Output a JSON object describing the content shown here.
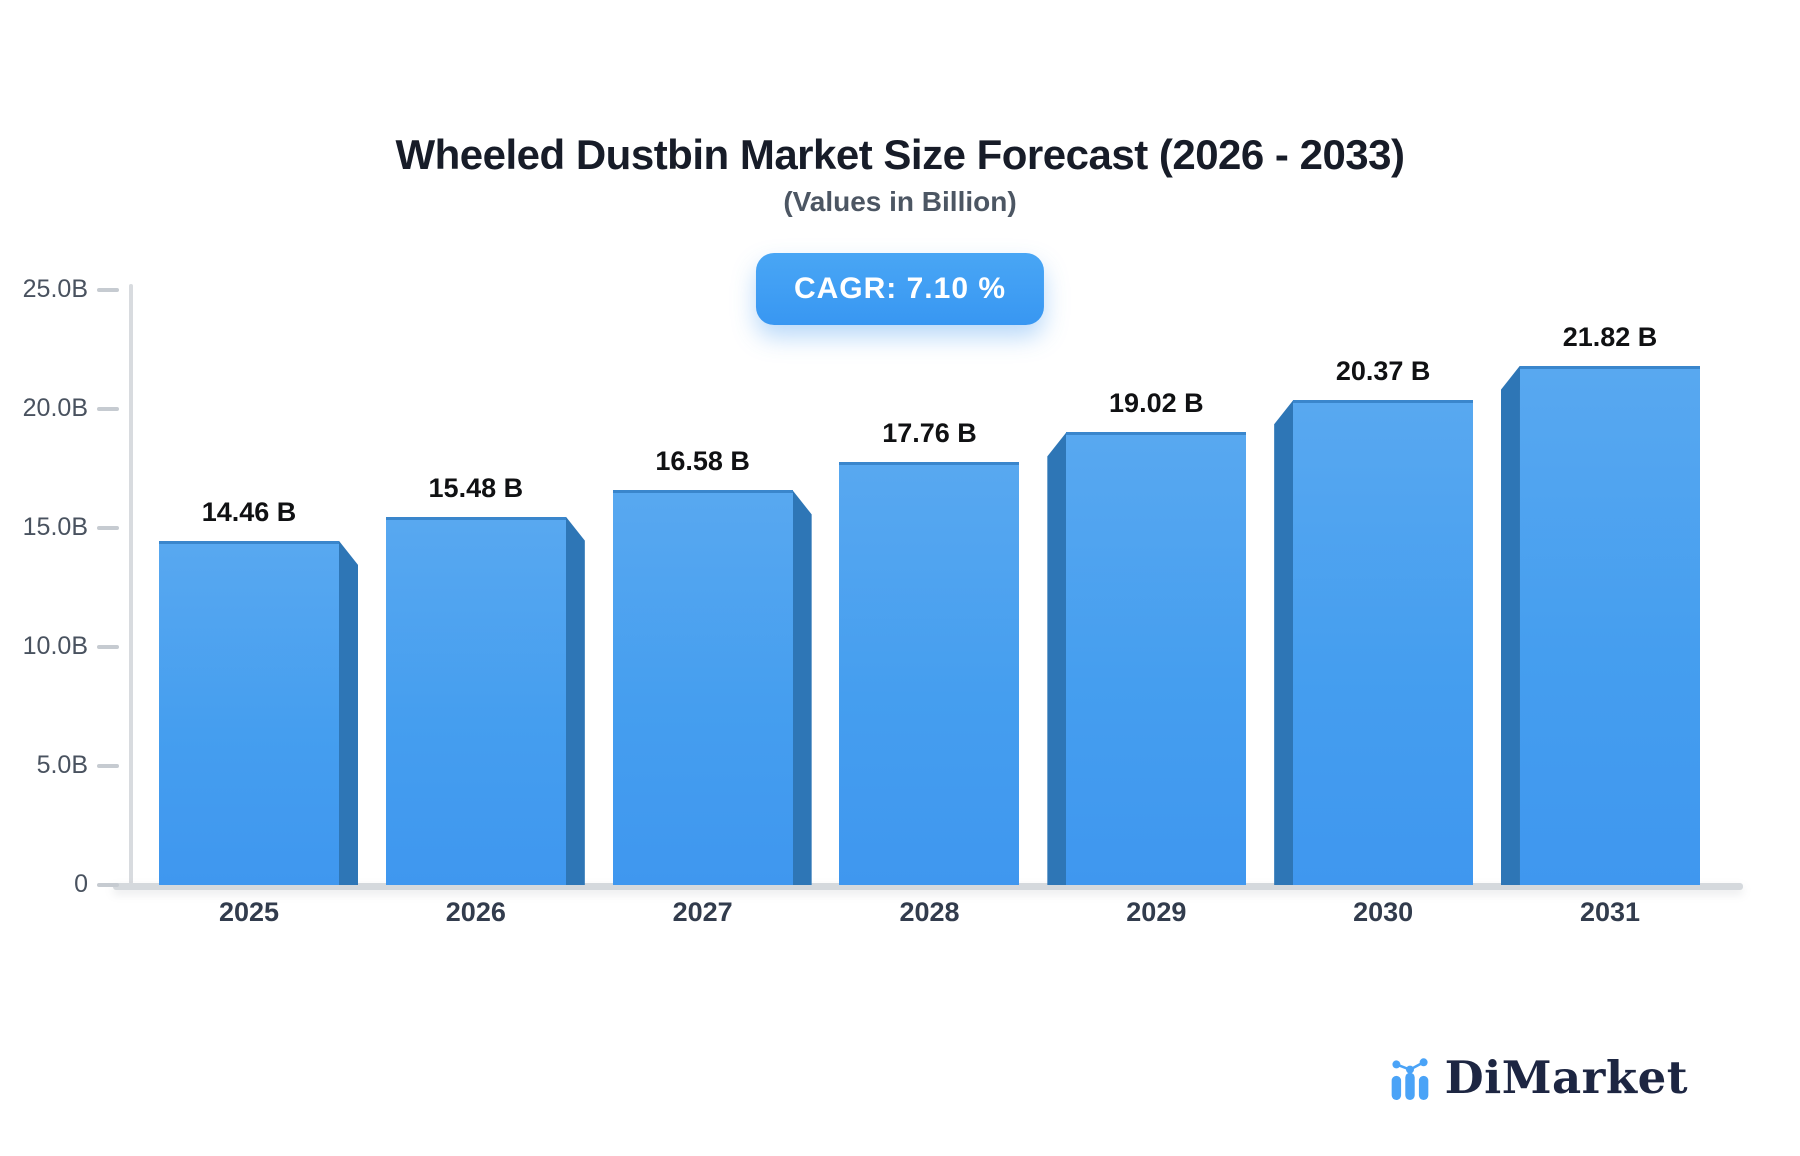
{
  "header": {
    "title": "Wheeled Dustbin Market Size Forecast (2026 - 2033)",
    "subtitle": "(Values in Billion)",
    "cagr_badge": "CAGR: 7.10 %"
  },
  "chart_data": {
    "type": "bar",
    "title": "Wheeled Dustbin Market Size Forecast (2026 - 2033)",
    "subtitle": "(Values in Billion)",
    "cagr": "7.10 %",
    "categories": [
      "2025",
      "2026",
      "2027",
      "2028",
      "2029",
      "2030",
      "2031"
    ],
    "values": [
      14.46,
      15.48,
      16.58,
      17.76,
      19.02,
      20.37,
      21.82
    ],
    "bar_labels": [
      "14.46 B",
      "15.48 B",
      "16.58 B",
      "17.76 B",
      "19.02 B",
      "20.37 B",
      "21.82 B"
    ],
    "xlabel": "",
    "ylabel": "",
    "ylim": [
      0,
      25
    ],
    "yticks": [
      {
        "label": "25.0B",
        "value": 25
      },
      {
        "label": "20.0B",
        "value": 20
      },
      {
        "label": "15.0B",
        "value": 15
      },
      {
        "label": "10.0B",
        "value": 10
      },
      {
        "label": "5.0B",
        "value": 5
      },
      {
        "label": "0",
        "value": 0
      }
    ],
    "grid": false,
    "legend": false,
    "style": "3d-perspective-bars"
  },
  "colors": {
    "bar_face_top": "#58a8f0",
    "bar_face_bottom": "#3f97ef",
    "bar_side_face": "#2e76b6",
    "bar_top_edge": "#3a86cc",
    "badge_background": "#3d9ef3",
    "badge_text": "#ffffff",
    "axis_line": "#d6dadd",
    "tick_dash": "#c6cbd1",
    "title_text": "#171c28",
    "subtitle_text": "#4c5663",
    "y_label_text": "#49525f",
    "x_label_text": "#323c4d",
    "value_label_text": "#101113",
    "logo_blue": "#4aa3f7",
    "logo_navy": "#1d2642"
  },
  "footer": {
    "brand": "DiMarket",
    "logo_icon": "bar-chart-with-trend-dots-icon"
  }
}
